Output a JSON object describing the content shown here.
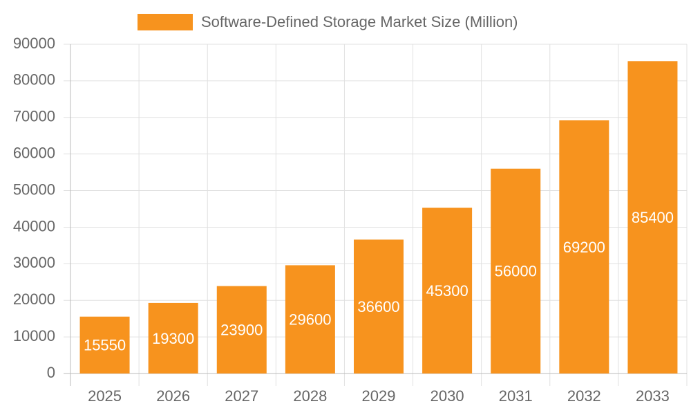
{
  "chart_data": {
    "type": "bar",
    "categories": [
      "2025",
      "2026",
      "2027",
      "2028",
      "2029",
      "2030",
      "2031",
      "2032",
      "2033"
    ],
    "series": [
      {
        "name": "Software-Defined Storage Market Size (Million)",
        "color": "#f7931e",
        "values": [
          15550,
          19300,
          23900,
          29600,
          36600,
          45300,
          56000,
          69200,
          85400
        ]
      }
    ],
    "ylim": [
      0,
      90000
    ],
    "yticks": [
      0,
      10000,
      20000,
      30000,
      40000,
      50000,
      60000,
      70000,
      80000,
      90000
    ],
    "grid": true,
    "legend": "top"
  }
}
